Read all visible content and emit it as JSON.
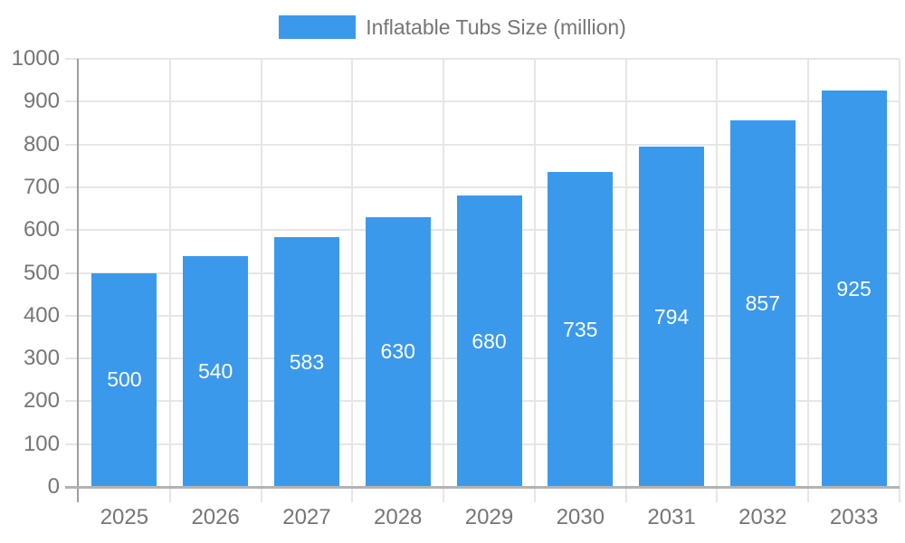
{
  "chart_data": {
    "type": "bar",
    "title": "Inflatable Tubs Size (million)",
    "categories": [
      "2025",
      "2026",
      "2027",
      "2028",
      "2029",
      "2030",
      "2031",
      "2032",
      "2033"
    ],
    "values": [
      500,
      540,
      583,
      630,
      680,
      735,
      794,
      857,
      925
    ],
    "xlabel": "",
    "ylabel": "",
    "ylim": [
      0,
      1000
    ],
    "ytick_step": 100,
    "grid": true,
    "legend_position": "top-center",
    "value_labels": "inside-center",
    "colors": {
      "bar": "#3B99EC",
      "grid": "#E6E6E6",
      "axis": "#9E9E9E",
      "baseline": "#B3B3B3",
      "label": "#757575",
      "value_label": "#FFFFFF",
      "background": "#FFFFFF"
    }
  }
}
